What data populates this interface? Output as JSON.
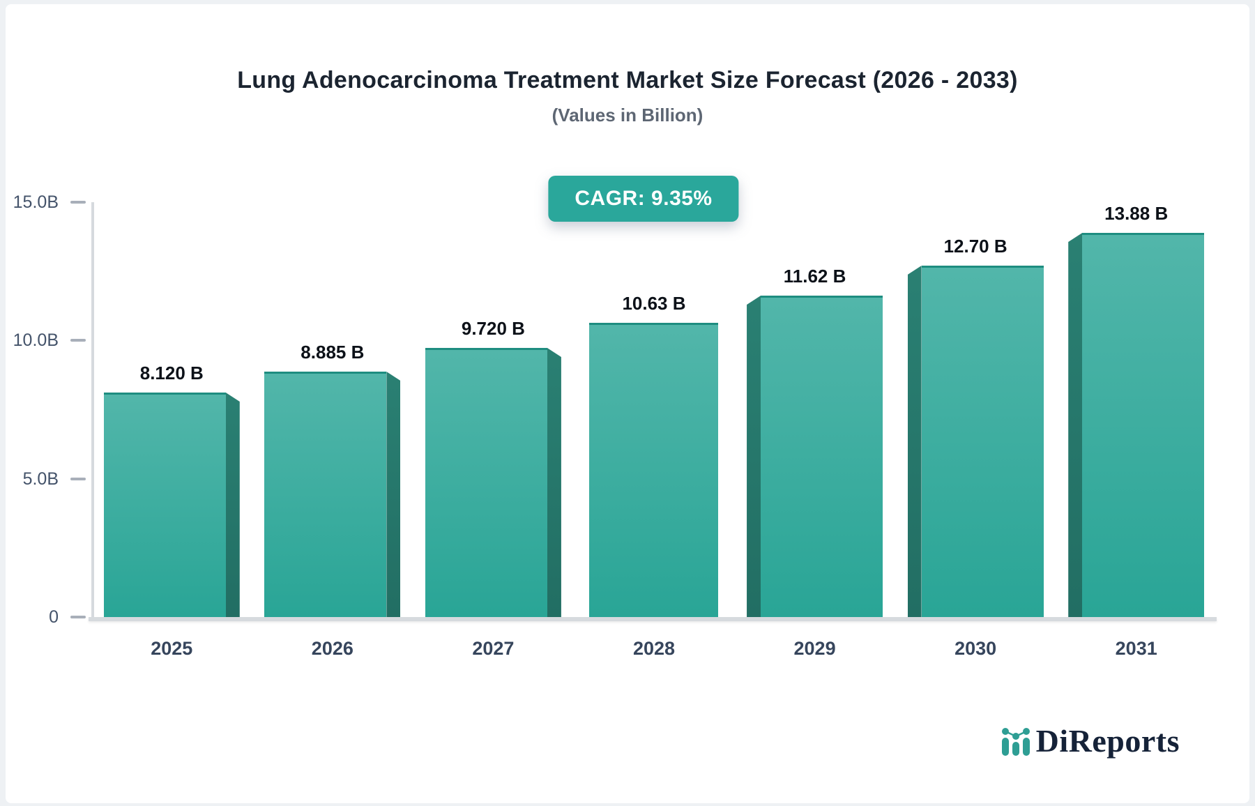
{
  "header": {
    "title": "Lung Adenocarcinoma Treatment Market Size Forecast (2026 - 2033)",
    "subtitle": "(Values in Billion)"
  },
  "badge": {
    "label": "CAGR: 9.35%"
  },
  "chart_data": {
    "type": "bar",
    "categories": [
      "2025",
      "2026",
      "2027",
      "2028",
      "2029",
      "2030",
      "2031"
    ],
    "values": [
      8.12,
      8.885,
      9.72,
      10.63,
      11.62,
      12.7,
      13.88
    ],
    "value_labels": [
      "8.120 B",
      "8.885 B",
      "9.720 B",
      "10.63 B",
      "11.62 B",
      "12.70 B",
      "13.88 B"
    ],
    "title": "Lung Adenocarcinoma Treatment Market Size Forecast (2026 - 2033)",
    "subtitle": "(Values in Billion)",
    "cagr": "9.35%",
    "xlabel": "",
    "ylabel": "",
    "ylim": [
      0,
      15
    ],
    "yticks": [
      {
        "value": 15,
        "label": "15.0B"
      },
      {
        "value": 10,
        "label": "10.0B"
      },
      {
        "value": 5,
        "label": "5.0B"
      },
      {
        "value": 0,
        "label": "0"
      }
    ],
    "grid": false,
    "legend": false
  },
  "colors": {
    "bar_top": "#52b6aa",
    "bar_bottom": "#29a596",
    "bar_edge": "#1e8d80",
    "bar_side_top": "#2a8073",
    "bar_side_bottom": "#226e63",
    "badge_bg": "#2aa79b",
    "logo_navy": "#152238",
    "logo_teal": "#2e9e94"
  },
  "footer": {
    "logo_text": "DiReports"
  }
}
